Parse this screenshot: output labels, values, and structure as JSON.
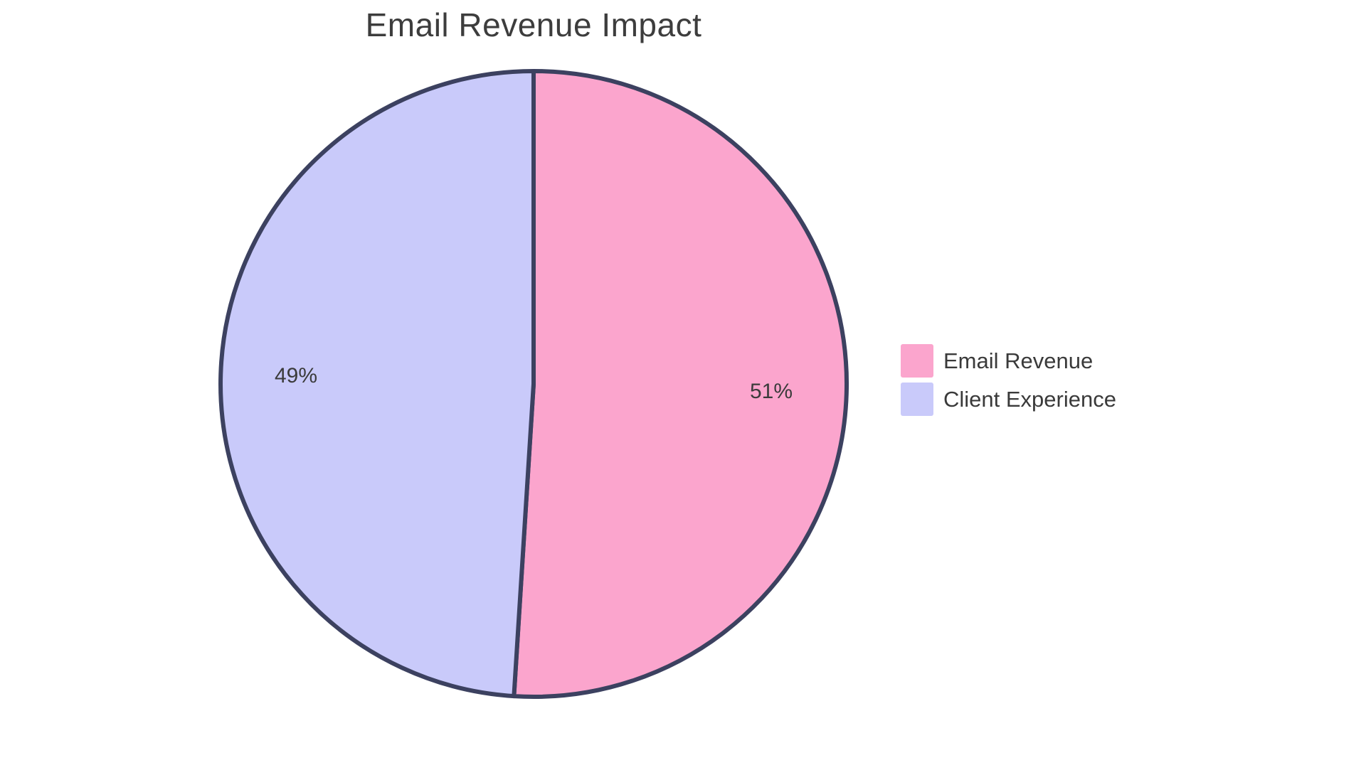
{
  "chart_data": {
    "type": "pie",
    "title": "Email Revenue Impact",
    "categories": [
      "Email Revenue",
      "Client Experience"
    ],
    "values": [
      51,
      49
    ],
    "slices": [
      {
        "label": "Email Revenue",
        "value": 51,
        "display": "51%",
        "color": "#FBA5CD"
      },
      {
        "label": "Client Experience",
        "value": 49,
        "display": "49%",
        "color": "#C9CAFA"
      }
    ],
    "legend_position": "right",
    "start_angle_deg": 0,
    "direction": "clockwise",
    "colors": {
      "slice_stroke": "#3C4160",
      "title_text": "#3D3D3D",
      "label_text": "#3B3B3B",
      "background": "#FFFFFF"
    }
  }
}
